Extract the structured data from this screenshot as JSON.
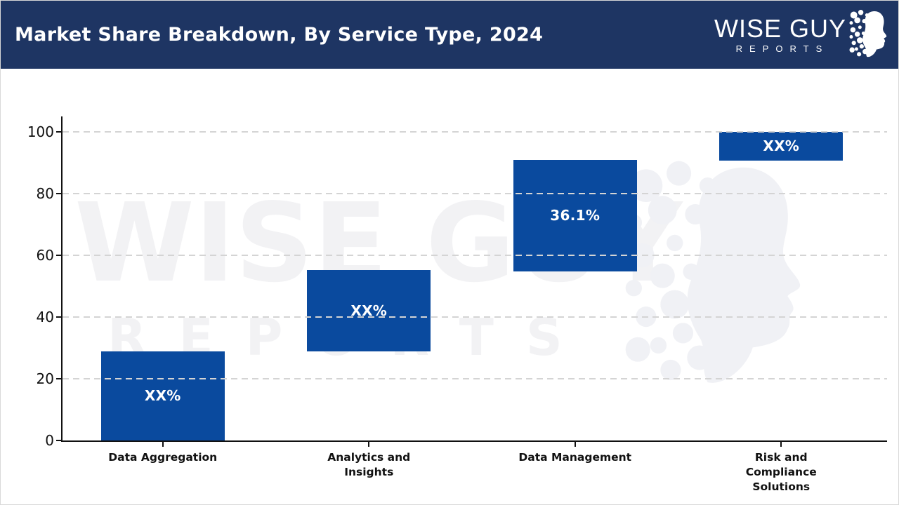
{
  "header": {
    "title": "Market Share Breakdown, By Service Type, 2024",
    "logo": {
      "name": "WISE GUY",
      "sub": "REPORTS"
    }
  },
  "watermark": {
    "name": "WISE GUY",
    "sub": "REPORTS"
  },
  "chart_data": {
    "type": "bar",
    "subtype": "floating_segment_waterfall",
    "title": "Market Share Breakdown, By Service Type, 2024",
    "xlabel": "",
    "ylabel": "",
    "ylim": [
      0,
      100
    ],
    "y_ticks": [
      0,
      20,
      40,
      60,
      80,
      100
    ],
    "grid": "horizontal-dashed",
    "legend": "none",
    "bar_color": "#0a4a9e",
    "value_label_color": "#ffffff",
    "categories": [
      "Data Aggregation",
      "Analytics and Insights",
      "Data Management",
      "Risk and Compliance Solutions"
    ],
    "bars": [
      {
        "category": "Data Aggregation",
        "display": "Data Aggregation",
        "start": 0,
        "end": 28.9,
        "label": "XX%"
      },
      {
        "category": "Analytics and Insights",
        "display": "Analytics and\nInsights",
        "start": 28.9,
        "end": 55.2,
        "label": "XX%"
      },
      {
        "category": "Data Management",
        "display": "Data Management",
        "start": 54.8,
        "end": 90.9,
        "label": "36.1%"
      },
      {
        "category": "Risk and Compliance Solutions",
        "display": "Risk and\nCompliance\nSolutions",
        "start": 90.7,
        "end": 100,
        "label": "XX%"
      }
    ]
  }
}
